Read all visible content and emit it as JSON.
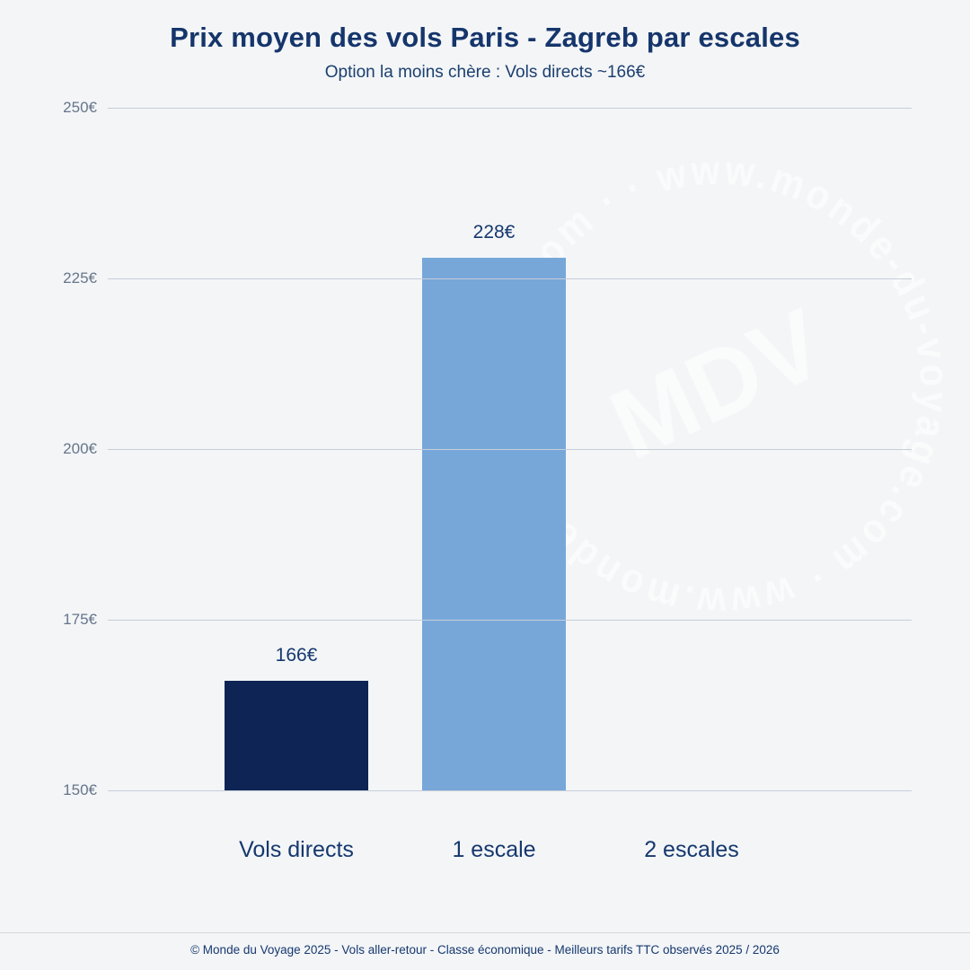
{
  "header": {
    "title": "Prix moyen des vols Paris - Zagreb par escales",
    "subtitle": "Option la moins chère : Vols directs ~166€"
  },
  "chart_data": {
    "type": "bar",
    "title": "Prix moyen des vols Paris - Zagreb par escales",
    "subtitle": "Option la moins chère : Vols directs ~166€",
    "categories": [
      "Vols directs",
      "1 escale",
      "2 escales"
    ],
    "values": [
      166,
      228,
      null
    ],
    "value_labels": [
      "166€",
      "228€",
      ""
    ],
    "bar_colors": [
      "#0e2454",
      "#77a7d9",
      "#77a7d9"
    ],
    "xlabel": "",
    "ylabel": "",
    "ylim": [
      150,
      250
    ],
    "yticks": [
      250,
      225,
      200,
      175,
      150
    ],
    "ytick_labels": [
      "250€",
      "225€",
      "200€",
      "175€",
      "150€"
    ],
    "grid": true,
    "legend": false
  },
  "watermark": {
    "ring_text": "· www.monde-du-voyage.com · www.monde-du-voyage.com ·",
    "center_text": "MDV"
  },
  "footer": {
    "text": "© Monde du Voyage 2025 - Vols aller-retour - Classe économique - Meilleurs tarifs TTC observés 2025 / 2026"
  }
}
